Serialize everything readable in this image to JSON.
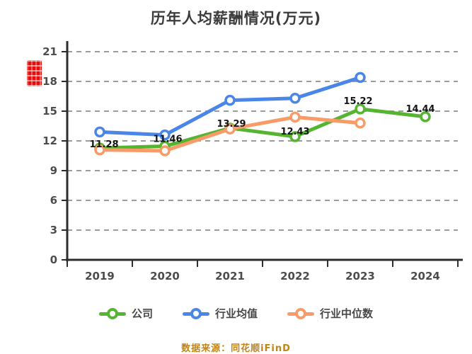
{
  "title": "历年人均薪酬情况(万元)",
  "watermark": {
    "icon": "red-logo-watermark",
    "color": "#e60d0d"
  },
  "footer": {
    "source_text": "数据来源：同花顺iFinD"
  },
  "chart_data": {
    "type": "line",
    "title": "历年人均薪酬情况(万元)",
    "categories": [
      "2019",
      "2020",
      "2021",
      "2022",
      "2023",
      "2024"
    ],
    "series": [
      {
        "name": "公司",
        "color": "#55b430",
        "values": [
          11.28,
          11.46,
          13.29,
          12.43,
          15.22,
          14.44
        ],
        "point_labels": [
          "11.28",
          "11.46",
          "13.29",
          "12.43",
          "15.22",
          "14.44"
        ]
      },
      {
        "name": "行业均值",
        "color": "#4a86e8",
        "values": [
          12.9,
          12.6,
          16.1,
          16.3,
          18.4,
          null
        ]
      },
      {
        "name": "行业中位数",
        "color": "#f89b68",
        "values": [
          11.1,
          11.0,
          13.2,
          14.4,
          13.8,
          null
        ]
      }
    ],
    "ylim": [
      0,
      21
    ],
    "yticks": [
      0,
      3,
      6,
      9,
      12,
      15,
      18,
      21
    ],
    "grid": true,
    "grid_style": "dashed",
    "legend_position": "bottom",
    "xlabel": "",
    "ylabel": ""
  }
}
